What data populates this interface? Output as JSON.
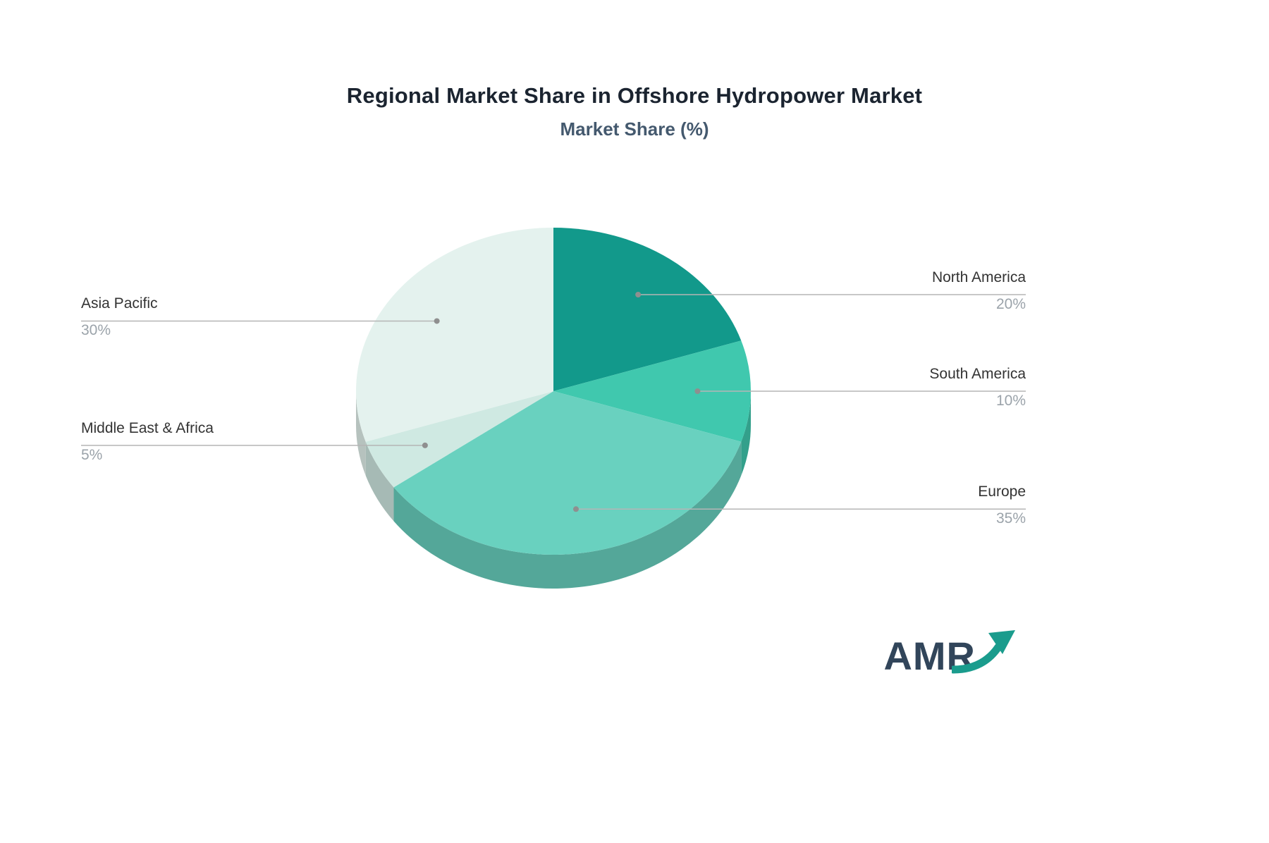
{
  "title": "Regional Market Share in Offshore Hydropower Market",
  "subtitle": "Market Share (%)",
  "chart_data": {
    "type": "pie",
    "title": "Regional Market Share in Offshore Hydropower Market",
    "subtitle": "Market Share (%)",
    "unit": "%",
    "categories": [
      "North America",
      "South America",
      "Europe",
      "Middle East & Africa",
      "Asia Pacific"
    ],
    "values": [
      20,
      10,
      35,
      5,
      30
    ],
    "start_angle_deg": 0,
    "direction": "clockwise",
    "style": "3d-pie",
    "legend_position": "callout-labels",
    "slices": [
      {
        "label": "North America",
        "value": 20,
        "value_label": "20%",
        "color": "#12998b",
        "side": "right"
      },
      {
        "label": "South America",
        "value": 10,
        "value_label": "10%",
        "color": "#40c8ae",
        "side": "right"
      },
      {
        "label": "Europe",
        "value": 35,
        "value_label": "35%",
        "color": "#69d1bf",
        "side": "right"
      },
      {
        "label": "Middle East & Africa",
        "value": 5,
        "value_label": "5%",
        "color": "#cfe9e2",
        "side": "left"
      },
      {
        "label": "Asia Pacific",
        "value": 30,
        "value_label": "30%",
        "color": "#e4f2ee",
        "side": "left"
      }
    ],
    "label_color": "#333333",
    "value_color": "#9ba3aa",
    "leader_line_color": "#b5b5b5"
  },
  "logo": {
    "text": "AMR"
  }
}
